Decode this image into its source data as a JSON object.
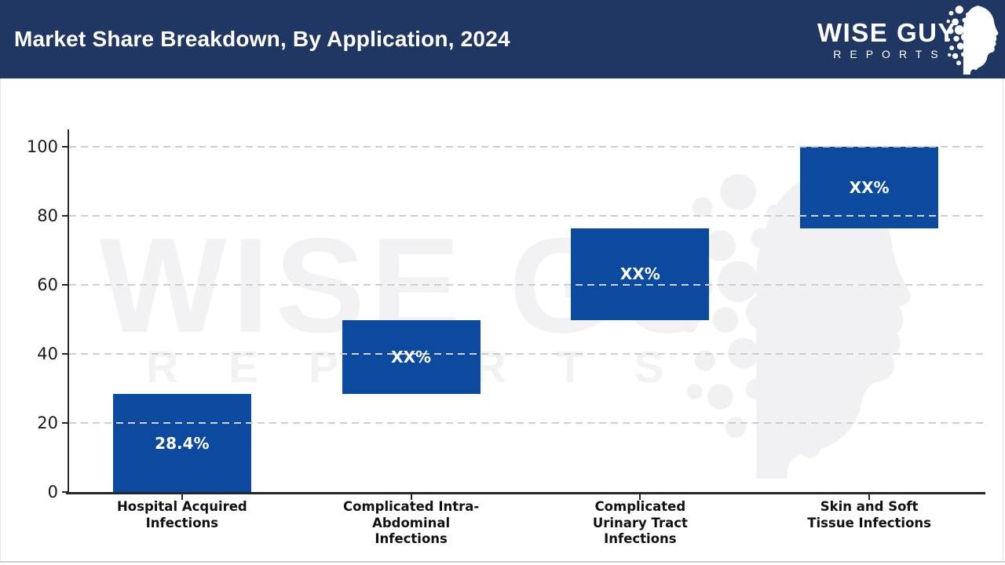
{
  "header": {
    "title": "Market Share Breakdown, By Application, 2024",
    "bg_color": "#213763",
    "logo": {
      "wordmark": "WISE GUY",
      "subtext": "REPORTS"
    }
  },
  "watermark": {
    "wordmark": "WISE GU",
    "subtext": "REPORTS"
  },
  "chart_data": {
    "type": "bar",
    "variant": "waterfall",
    "title": "Market Share Breakdown, By Application, 2024",
    "categories": [
      "Hospital Acquired Infections",
      "Complicated Intra-Abdominal Infections",
      "Complicated Urinary Tract Infections",
      "Skin and Soft Tissue Infections"
    ],
    "categories_wrapped": [
      [
        "Hospital Acquired",
        "Infections"
      ],
      [
        "Complicated Intra-",
        "Abdominal",
        "Infections"
      ],
      [
        "Complicated",
        "Urinary Tract",
        "Infections"
      ],
      [
        "Skin and Soft",
        "Tissue Infections"
      ]
    ],
    "bars": [
      {
        "label": "28.4%",
        "start": 0,
        "end": 28.4
      },
      {
        "label": "XX%",
        "start": 28.4,
        "end": 49.8
      },
      {
        "label": "XX%",
        "start": 49.8,
        "end": 76.4
      },
      {
        "label": "XX%",
        "start": 76.4,
        "end": 100
      }
    ],
    "y_ticks": [
      0,
      20,
      40,
      60,
      80,
      100
    ],
    "ylim": [
      0,
      105
    ],
    "xlabel": "",
    "ylabel": "",
    "bar_color": "#0c4aa0",
    "grid": {
      "axis": "y",
      "style": "dashed",
      "color": "#cfcfcf",
      "on_top": true
    },
    "legend": null
  }
}
